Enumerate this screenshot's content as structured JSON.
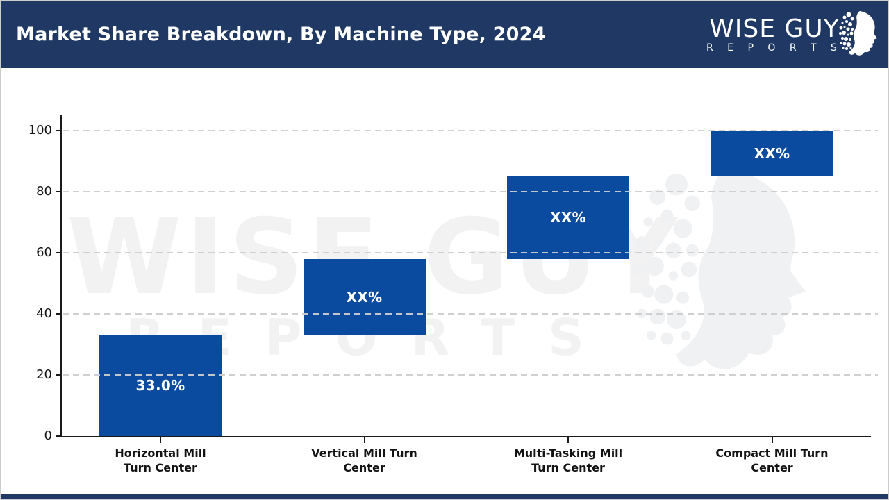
{
  "header": {
    "title": "Market Share Breakdown, By Machine Type, 2024",
    "bg_color": "#1f3864",
    "logo": {
      "wordmark": "WISE GUY",
      "subtext": "R E P O R T S"
    }
  },
  "watermark": {
    "line1": "WISE GUY",
    "line2": "REPORTS"
  },
  "footer": {
    "color": "#1f3864"
  },
  "chart_data": {
    "type": "bar",
    "subtype": "floating-waterfall",
    "title": "Market Share Breakdown, By Machine Type, 2024",
    "categories": [
      "Horizontal Mill\nTurn Center",
      "Vertical Mill Turn\nCenter",
      "Multi-Tasking Mill\nTurn Center",
      "Compact Mill Turn\nCenter"
    ],
    "segments": [
      {
        "base": 0,
        "top": 33,
        "value": 33.0,
        "label": "33.0%"
      },
      {
        "base": 33,
        "top": 58,
        "value": 25.0,
        "label": "XX%"
      },
      {
        "base": 58,
        "top": 85,
        "value": 27.0,
        "label": "XX%"
      },
      {
        "base": 85,
        "top": 100,
        "value": 15.0,
        "label": "XX%"
      }
    ],
    "bar_color": "#0b4b9f",
    "label_color": "#ffffff",
    "xlabel": "",
    "ylabel": "",
    "ylim": [
      0,
      105
    ],
    "yticks": [
      0,
      20,
      40,
      60,
      80,
      100
    ],
    "grid": "horizontal dashed, drawn over bars",
    "legend": "none"
  }
}
